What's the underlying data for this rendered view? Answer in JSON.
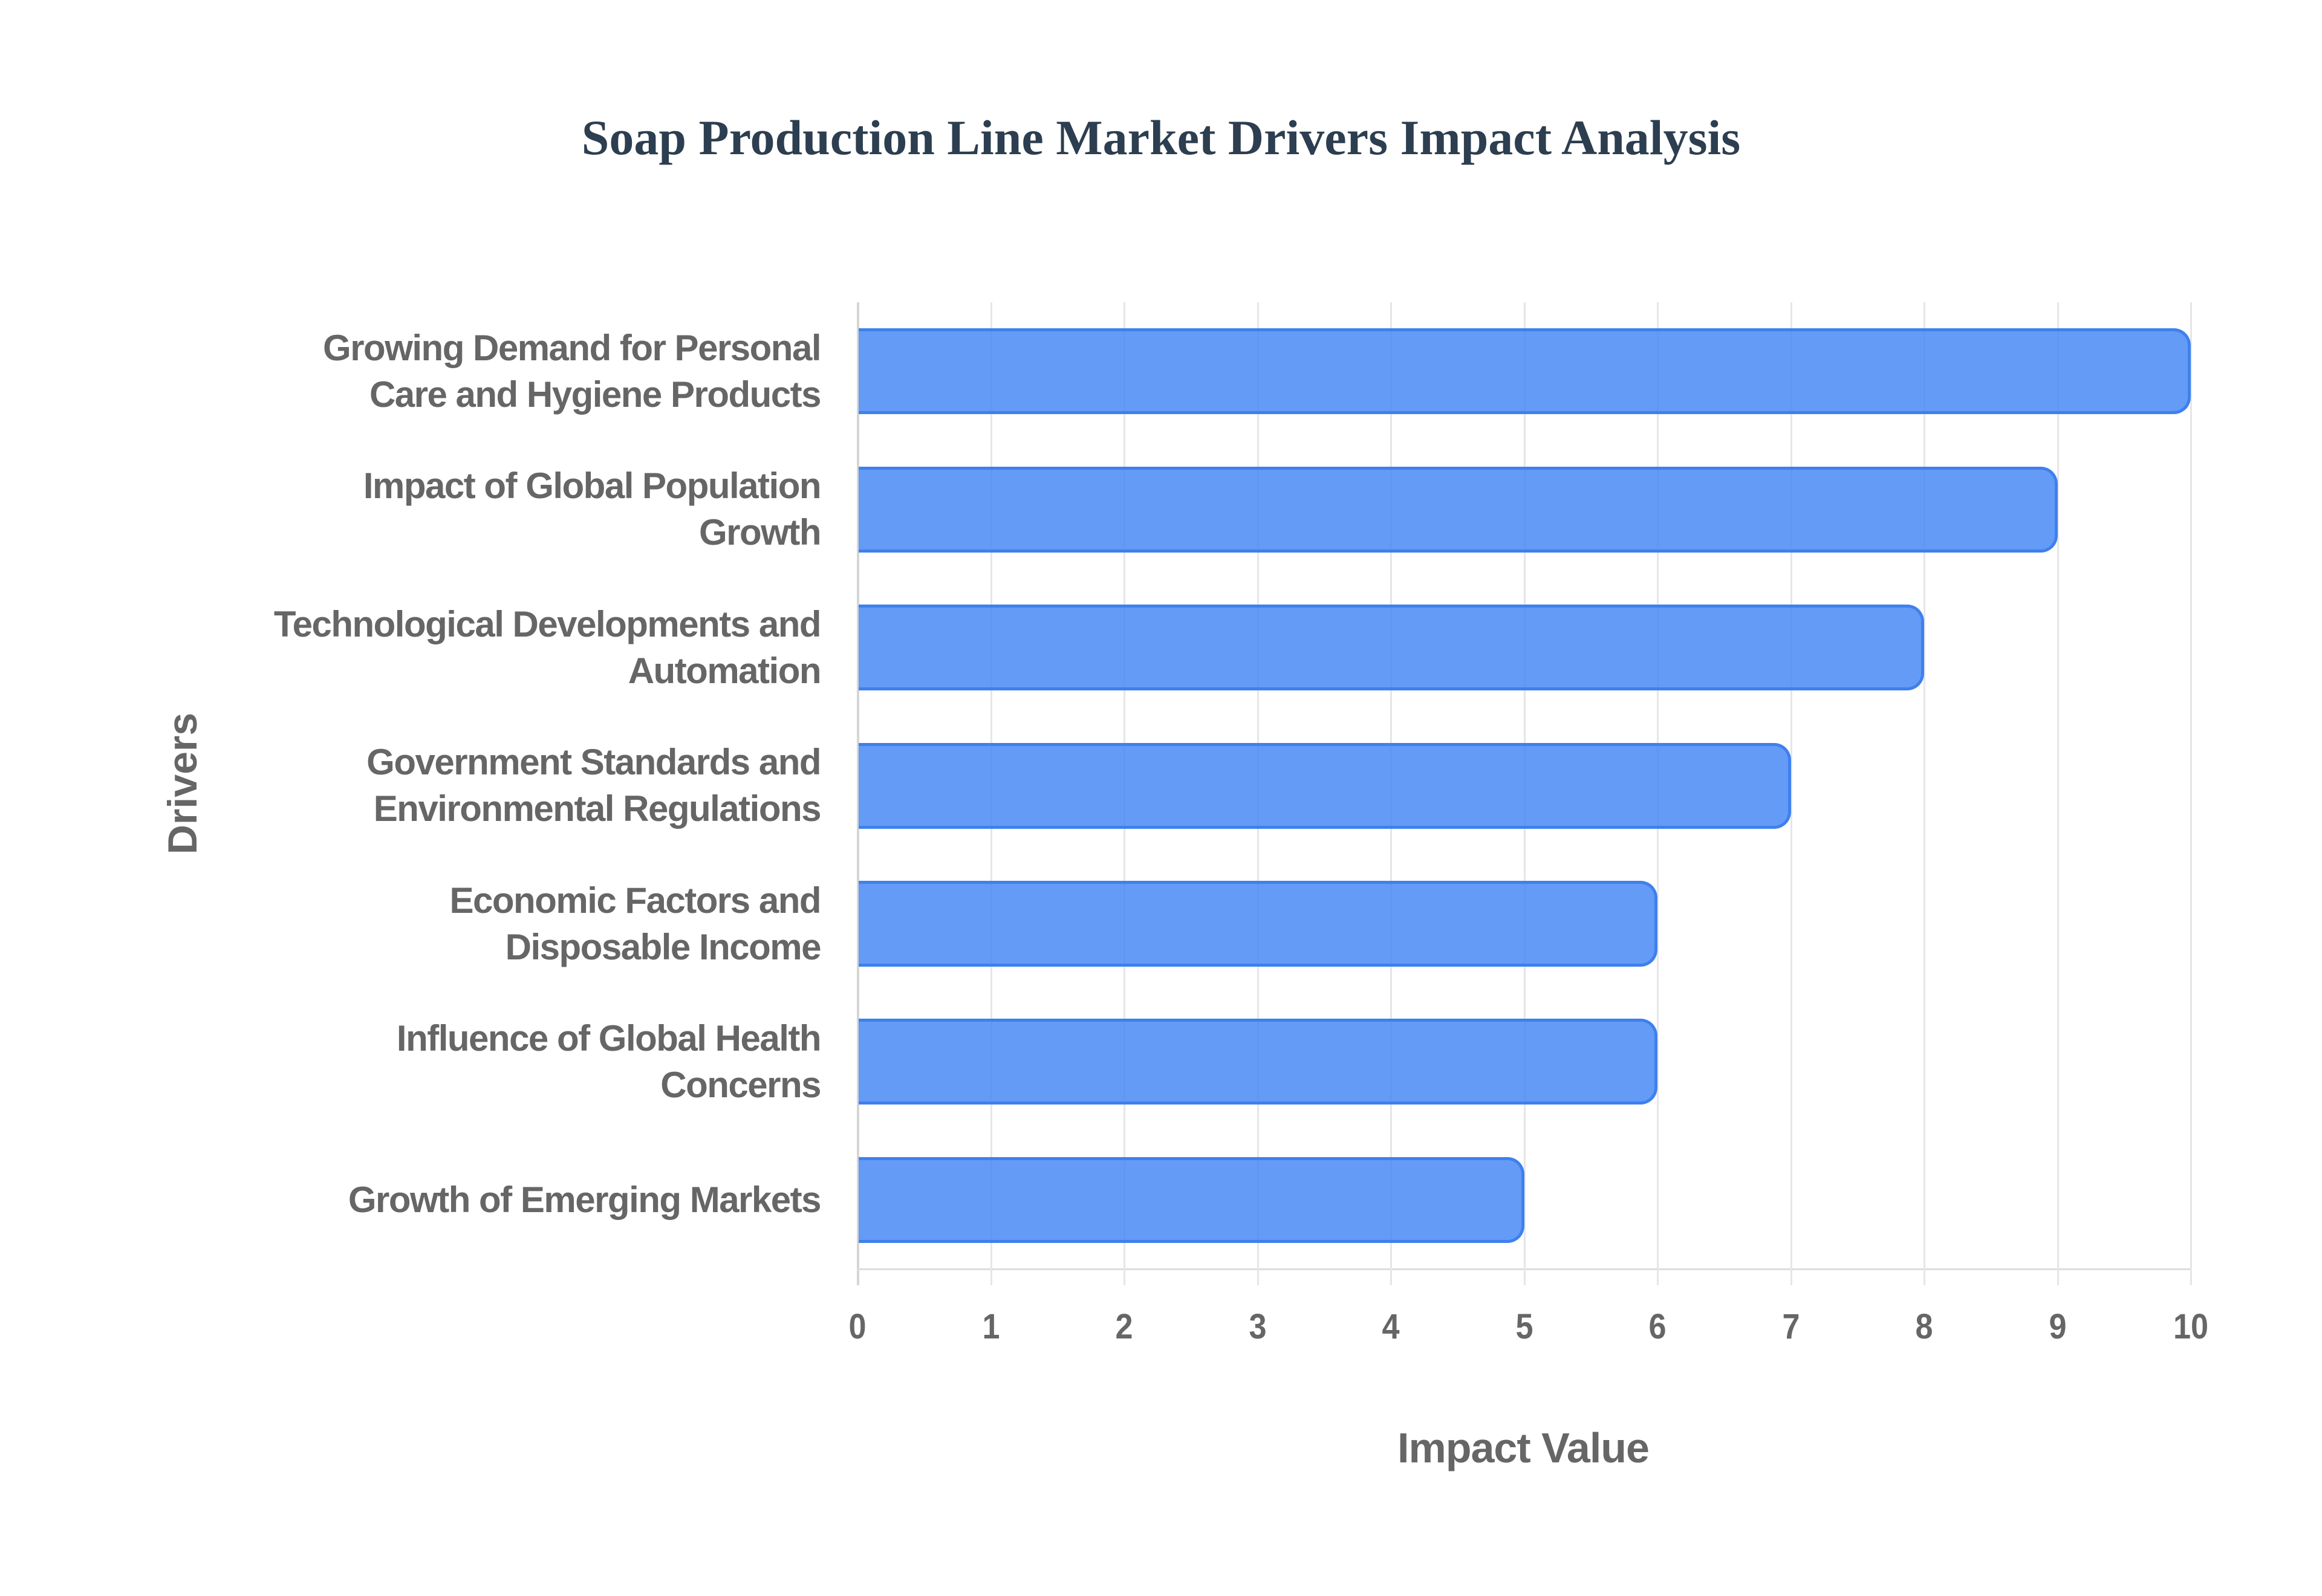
{
  "chart": {
    "title": "Soap Production Line Market Drivers Impact Analysis",
    "xlabel": "Impact Value",
    "ylabel": "Drivers",
    "ticks": [
      "0",
      "1",
      "2",
      "3",
      "4",
      "5",
      "6",
      "7",
      "8",
      "9",
      "10"
    ],
    "categories": [
      {
        "line1": "Growing Demand for Personal",
        "line2": "Care and Hygiene Products"
      },
      {
        "line1": "Impact of Global Population",
        "line2": "Growth"
      },
      {
        "line1": "Technological Developments and",
        "line2": "Automation"
      },
      {
        "line1": "Government Standards and",
        "line2": "Environmental Regulations"
      },
      {
        "line1": "Economic Factors and",
        "line2": "Disposable Income"
      },
      {
        "line1": "Influence of Global Health",
        "line2": "Concerns"
      },
      {
        "line1": "Growth of Emerging Markets",
        "line2": ""
      }
    ],
    "colors": {
      "bar_fill": "#6399F4",
      "bar_border": "#3E80EE",
      "title": "#2C3E50",
      "text": "#666666",
      "grid": "#E6E6E6"
    }
  },
  "chart_data": {
    "type": "bar",
    "orientation": "horizontal",
    "title": "Soap Production Line Market Drivers Impact Analysis",
    "xlabel": "Impact Value",
    "ylabel": "Drivers",
    "categories": [
      "Growing Demand for Personal Care and Hygiene Products",
      "Impact of Global Population Growth",
      "Technological Developments and Automation",
      "Government Standards and Environmental Regulations",
      "Economic Factors and Disposable Income",
      "Influence of Global Health Concerns",
      "Growth of Emerging Markets"
    ],
    "values": [
      10,
      9,
      8,
      7,
      6,
      6,
      5
    ],
    "xlim": [
      0,
      10
    ],
    "xticks": [
      0,
      1,
      2,
      3,
      4,
      5,
      6,
      7,
      8,
      9,
      10
    ],
    "grid": true,
    "legend": null
  }
}
